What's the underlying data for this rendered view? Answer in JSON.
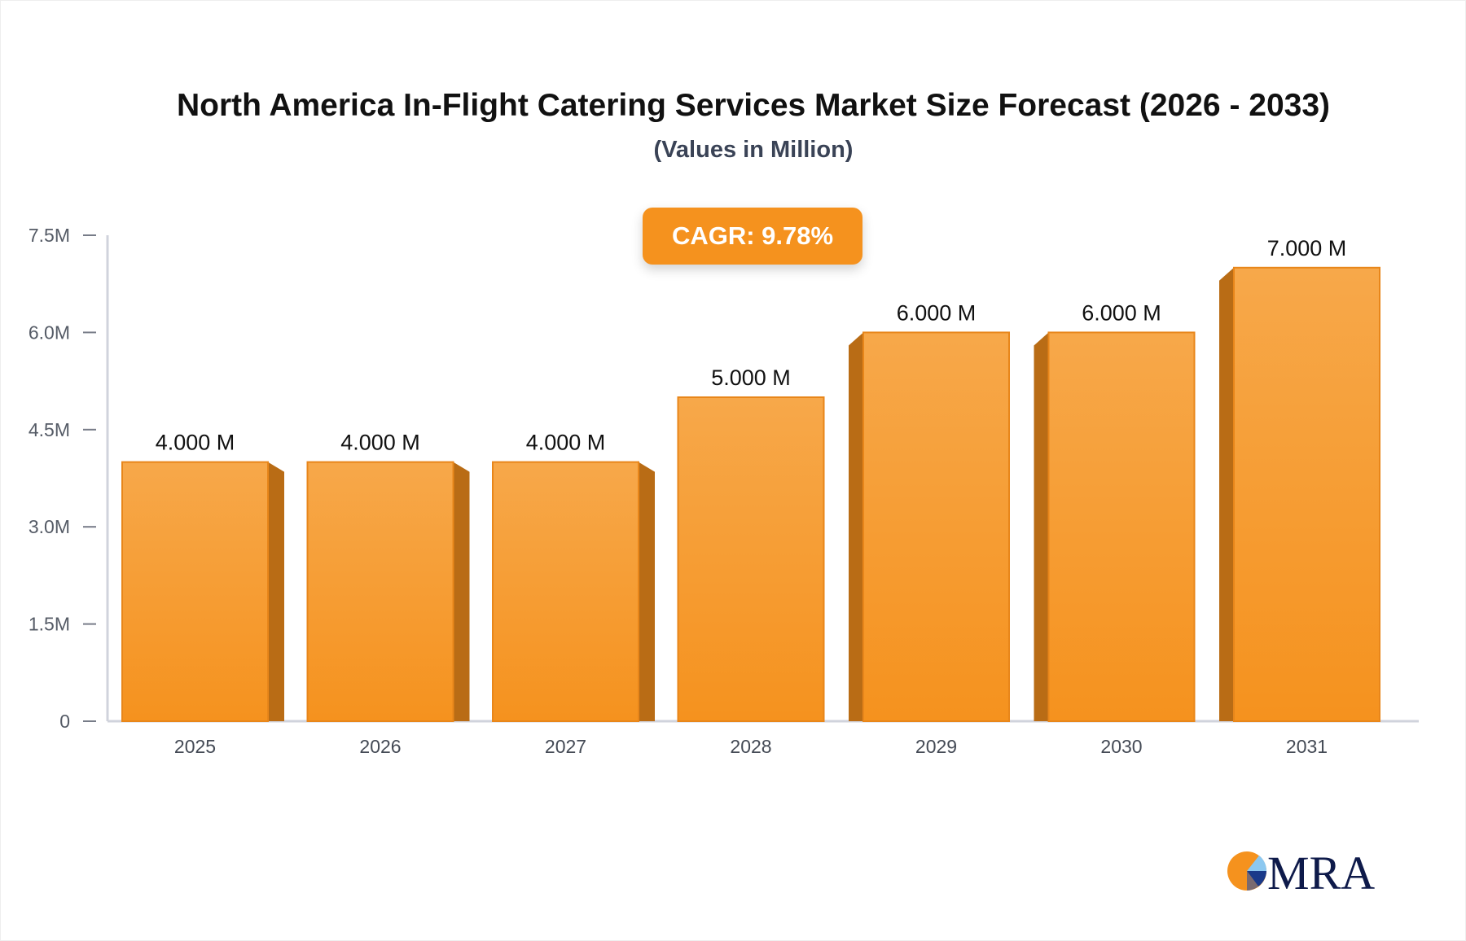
{
  "chart_data": {
    "type": "bar",
    "title": "North America In-Flight Catering Services Market Size Forecast (2026 - 2033)",
    "subtitle": "(Values in Million)",
    "annotation": "CAGR: 9.78%",
    "categories": [
      "2025",
      "2026",
      "2027",
      "2028",
      "2029",
      "2030",
      "2031"
    ],
    "values": [
      4.0,
      4.0,
      4.0,
      5.0,
      6.0,
      6.0,
      7.0
    ],
    "data_labels": [
      "4.000 M",
      "4.000 M",
      "4.000 M",
      "5.000 M",
      "6.000 M",
      "6.000 M",
      "7.000 M"
    ],
    "y_ticks": [
      0,
      1.5,
      3.0,
      4.5,
      6.0,
      7.5
    ],
    "y_tick_labels": [
      "0",
      "1.5M",
      "3.0M",
      "4.5M",
      "6.0M",
      "7.5M"
    ],
    "ylim": [
      0,
      7.5
    ],
    "xlabel": "",
    "ylabel": "",
    "grid": false,
    "colors": {
      "bar": "#f5921e",
      "bar_top": "#f7a84a",
      "bar_side": "#b96c15",
      "axis": "#d0d3dc"
    }
  },
  "logo": {
    "text": "MRA"
  }
}
